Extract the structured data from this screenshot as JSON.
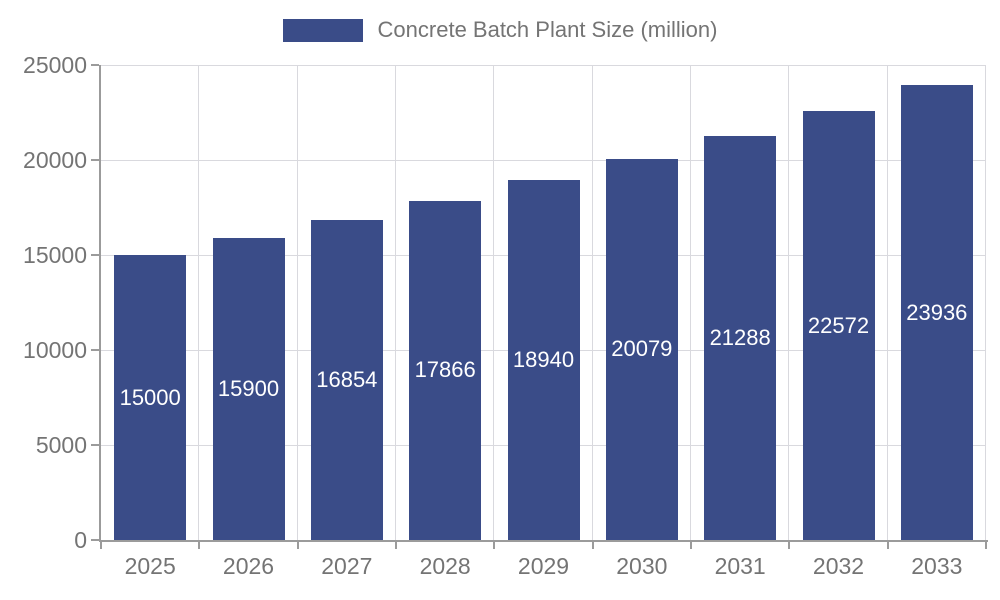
{
  "legend": {
    "label": "Concrete Batch Plant Size (million)"
  },
  "colors": {
    "bar": "#3A4C88",
    "value_label": "#FFFFFF",
    "axis_text": "#747474",
    "axis_line": "#9B9B9B",
    "gridline": "#D9D9DE",
    "background": "#FFFFFF"
  },
  "chart_data": {
    "type": "bar",
    "title": "Concrete Batch Plant Size (million)",
    "categories": [
      "2025",
      "2026",
      "2027",
      "2028",
      "2029",
      "2030",
      "2031",
      "2032",
      "2033"
    ],
    "values": [
      15000,
      15900,
      16854,
      17866,
      18940,
      20079,
      21288,
      22572,
      23936
    ],
    "value_labels": [
      "15000",
      "15900",
      "16854",
      "17866",
      "18940",
      "20079",
      "21288",
      "22572",
      "23936"
    ],
    "xlabel": "",
    "ylabel": "",
    "ylim": [
      0,
      25000
    ],
    "yticks": [
      0,
      5000,
      10000,
      15000,
      20000,
      25000
    ],
    "ytick_labels": [
      "0",
      "5000",
      "10000",
      "15000",
      "20000",
      "25000"
    ],
    "grid": true,
    "legend_position": "top",
    "value_label_position": "inside-center"
  }
}
